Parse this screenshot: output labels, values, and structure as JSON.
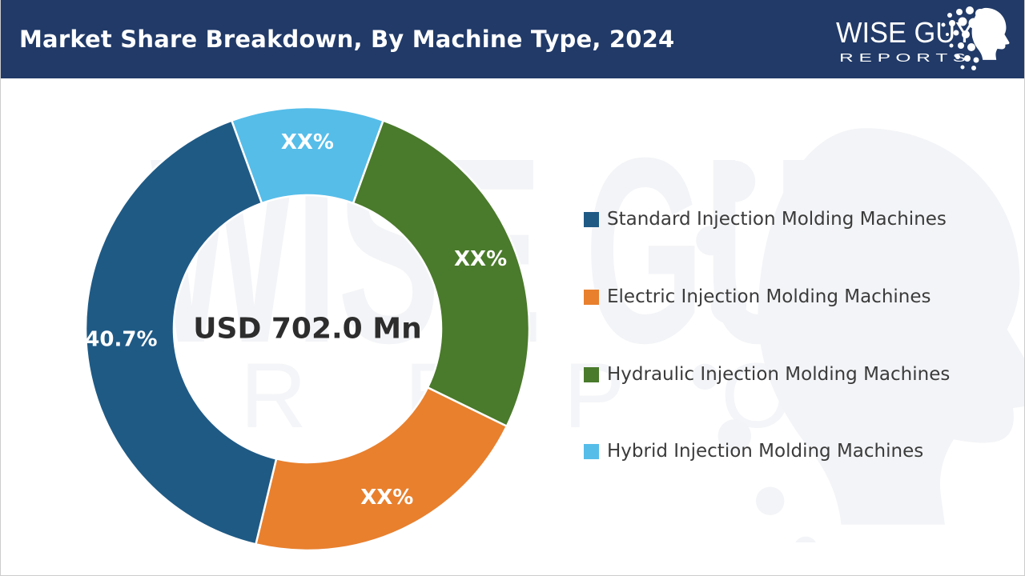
{
  "header": {
    "title": "Market Share Breakdown, By Machine Type, 2024",
    "bg_color": "#213a68",
    "logo": {
      "line1": "WISE GUY",
      "line2": "R E P O R T S"
    }
  },
  "watermark": {
    "line1": "WISE GUY",
    "line2": "R E P O R T S"
  },
  "chart_data": {
    "type": "pie",
    "subtype": "donut",
    "title": "Market Share Breakdown, By Machine Type, 2024",
    "center_label": "USD 702.0 Mn",
    "start_angle_deg": -20,
    "legend_position": "right",
    "segments": [
      {
        "name": "Hybrid Injection Molding Machines",
        "value_pct": 11.1,
        "display_label": "XX%",
        "color": "#56bde9"
      },
      {
        "name": "Hydraulic Injection Molding Machines",
        "value_pct": 26.7,
        "display_label": "XX%",
        "color": "#4a7a2b"
      },
      {
        "name": "Electric Injection Molding Machines",
        "value_pct": 21.5,
        "display_label": "XX%",
        "color": "#e8802e"
      },
      {
        "name": "Standard Injection Molding Machines",
        "value_pct": 40.7,
        "display_label": "40.7%",
        "color": "#1f5a85"
      }
    ],
    "legend": [
      {
        "label": "Standard Injection Molding Machines",
        "color": "#1f5a85"
      },
      {
        "label": "Electric Injection Molding Machines",
        "color": "#e8802e"
      },
      {
        "label": "Hydraulic Injection Molding Machines",
        "color": "#4a7a2b"
      },
      {
        "label": "Hybrid Injection Molding Machines",
        "color": "#56bde9"
      }
    ]
  }
}
